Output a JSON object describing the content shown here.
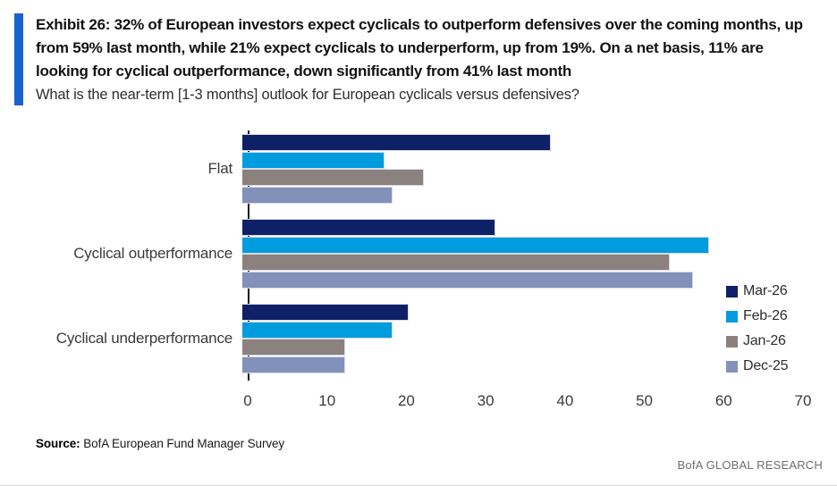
{
  "header": {
    "exhibit_title": "Exhibit 26: 32% of European investors expect cyclicals to outperform defensives over the coming months, up from 59% last month, while 21% expect cyclicals to underperform, up from 19%. On a net basis, 11% are looking for cyclical outperformance, down significantly from 41% last month",
    "subtitle": "What is the near-term [1-3 months] outlook for European cyclicals versus defensives?"
  },
  "chart_data": {
    "type": "bar",
    "orientation": "horizontal",
    "title": "What is the near-term [1-3 months] outlook for European cyclicals versus defensives?",
    "categories": [
      "Flat",
      "Cyclical outperformance",
      "Cyclical underperformance"
    ],
    "series": [
      {
        "name": "Mar-26",
        "color": "#0E2167",
        "values": [
          39,
          32,
          21
        ]
      },
      {
        "name": "Feb-26",
        "color": "#009CDE",
        "values": [
          18,
          59,
          19
        ]
      },
      {
        "name": "Jan-26",
        "color": "#8B817E",
        "values": [
          23,
          54,
          13
        ]
      },
      {
        "name": "Dec-25",
        "color": "#8191BA",
        "values": [
          19,
          57,
          13
        ]
      }
    ],
    "xlim": [
      0,
      70
    ],
    "xticks": [
      0,
      10,
      20,
      30,
      40,
      50,
      60,
      70
    ],
    "xlabel": "",
    "ylabel": "",
    "grid": false,
    "legend_position": "right"
  },
  "footer": {
    "source_label": "Source:",
    "source_text": " BofA European Fund Manager Survey",
    "brand": "BofA GLOBAL RESEARCH"
  },
  "colors": {
    "accent_bar": "#1763CC",
    "axis_line": "#1a1a1a"
  }
}
